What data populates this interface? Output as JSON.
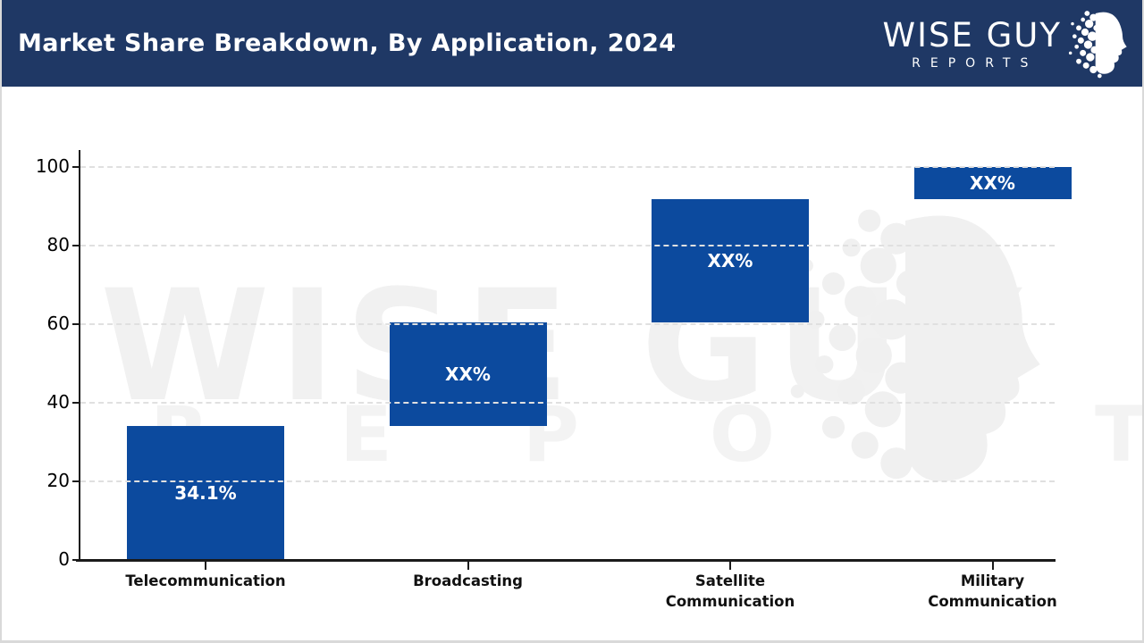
{
  "header": {
    "title": "Market Share Breakdown, By Application, 2024",
    "logo": {
      "line1": "WISE GUY",
      "line2": "REPORTS"
    }
  },
  "watermark": {
    "line1": "WISE GUY",
    "line2": "R E P O R T S"
  },
  "colors": {
    "header_bg": "#1f3865",
    "bar_blue": "#0c4a9e",
    "grid": "#e0e0e0",
    "axis": "#1a1a1a",
    "bar_label": "#ffffff",
    "watermark": "#f1f1f1"
  },
  "chart_data": {
    "type": "bar",
    "subtype": "waterfall-stacked-steps",
    "title": "Market Share Breakdown, By Application, 2024",
    "xlabel": "",
    "ylabel": "",
    "ylim": [
      0,
      104.5
    ],
    "y_ticks": [
      0,
      20,
      40,
      60,
      80,
      100
    ],
    "grid": "horizontal-dashed",
    "legend": "none",
    "categories": [
      "Telecommunication",
      "Broadcasting",
      "Satellite\nCommunication",
      "Military\nCommunication"
    ],
    "segments": [
      {
        "category": "Telecommunication",
        "start": 0,
        "end": 34.1,
        "value": 34.1,
        "label": "34.1%"
      },
      {
        "category": "Broadcasting",
        "start": 34.1,
        "end": 60.5,
        "value": 26.4,
        "label": "XX%"
      },
      {
        "category": "Satellite Communication",
        "start": 60.5,
        "end": 91.8,
        "value": 31.3,
        "label": "XX%"
      },
      {
        "category": "Military Communication",
        "start": 91.8,
        "end": 100,
        "value": 8.2,
        "label": "XX%"
      }
    ]
  }
}
